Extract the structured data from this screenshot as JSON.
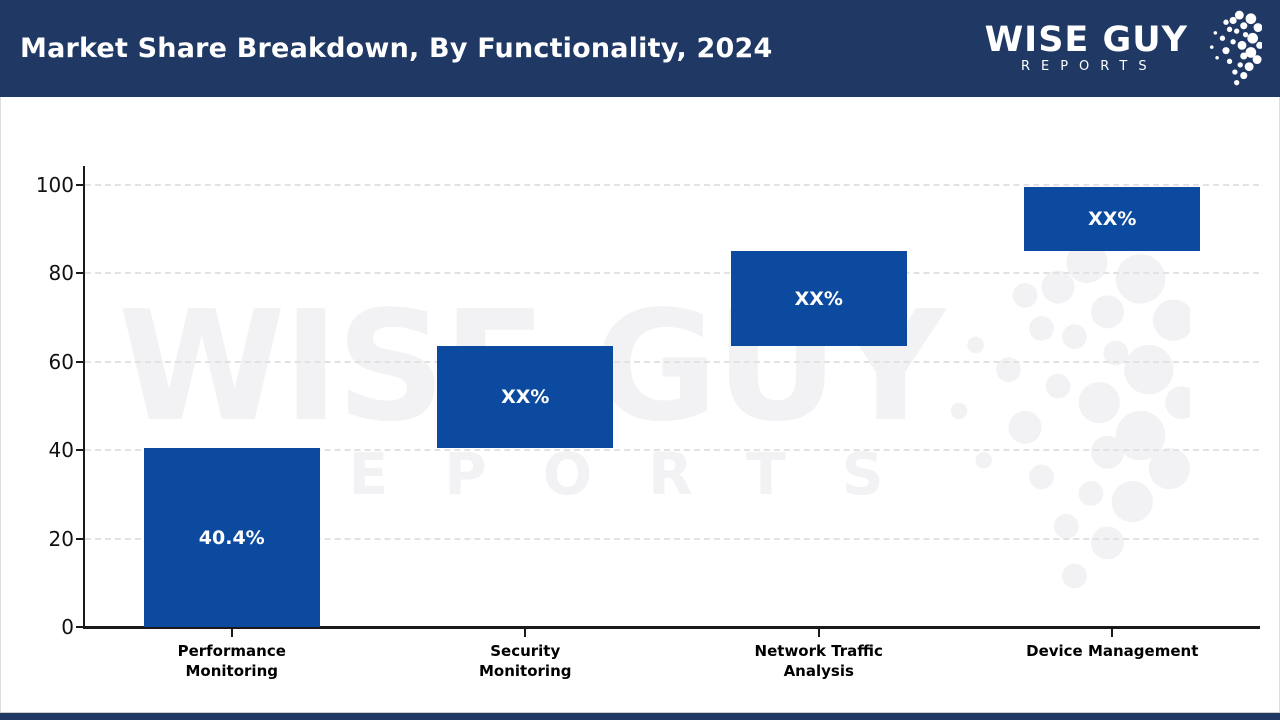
{
  "header": {
    "title": "Market Share Breakdown, By Functionality, 2024",
    "logo": {
      "name": "WISE GUY",
      "tagline": "REPORTS"
    }
  },
  "watermark": {
    "name": "WISE GUY",
    "tagline": "REPORTS"
  },
  "chart_data": {
    "type": "bar",
    "subtype": "floating-segment-waterfall",
    "title": "Market Share Breakdown, By Functionality, 2024",
    "categories": [
      "Performance Monitoring",
      "Security Monitoring",
      "Network Traffic Analysis",
      "Device Management"
    ],
    "categories_lines": [
      [
        "Performance",
        "Monitoring"
      ],
      [
        "Security",
        "Monitoring"
      ],
      [
        "Network Traffic",
        "Analysis"
      ],
      [
        "Device Management"
      ]
    ],
    "segments": [
      {
        "category": "Performance Monitoring",
        "label": "40.4%",
        "start": 0,
        "end": 40.4
      },
      {
        "category": "Security Monitoring",
        "label": "XX%",
        "start": 40.4,
        "end": 63.5
      },
      {
        "category": "Network Traffic Analysis",
        "label": "XX%",
        "start": 63.5,
        "end": 85
      },
      {
        "category": "Device Management",
        "label": "XX%",
        "start": 85,
        "end": 99.5
      }
    ],
    "yticks": [
      0,
      20,
      40,
      60,
      80,
      100
    ],
    "ylim": [
      0,
      104
    ],
    "xlabel": "",
    "ylabel": "",
    "grid": "horizontal dashed",
    "legend": "none",
    "bar_color": "#0b4a9f",
    "bar_label_color": "#ffffff"
  },
  "colors": {
    "header_bg": "#1f3864",
    "footer_bg": "#1f3864",
    "bar": "#0b4a9f",
    "watermark": "#f2f2f4",
    "axis": "#1a1a1a",
    "grid": "#e2e2e2"
  }
}
